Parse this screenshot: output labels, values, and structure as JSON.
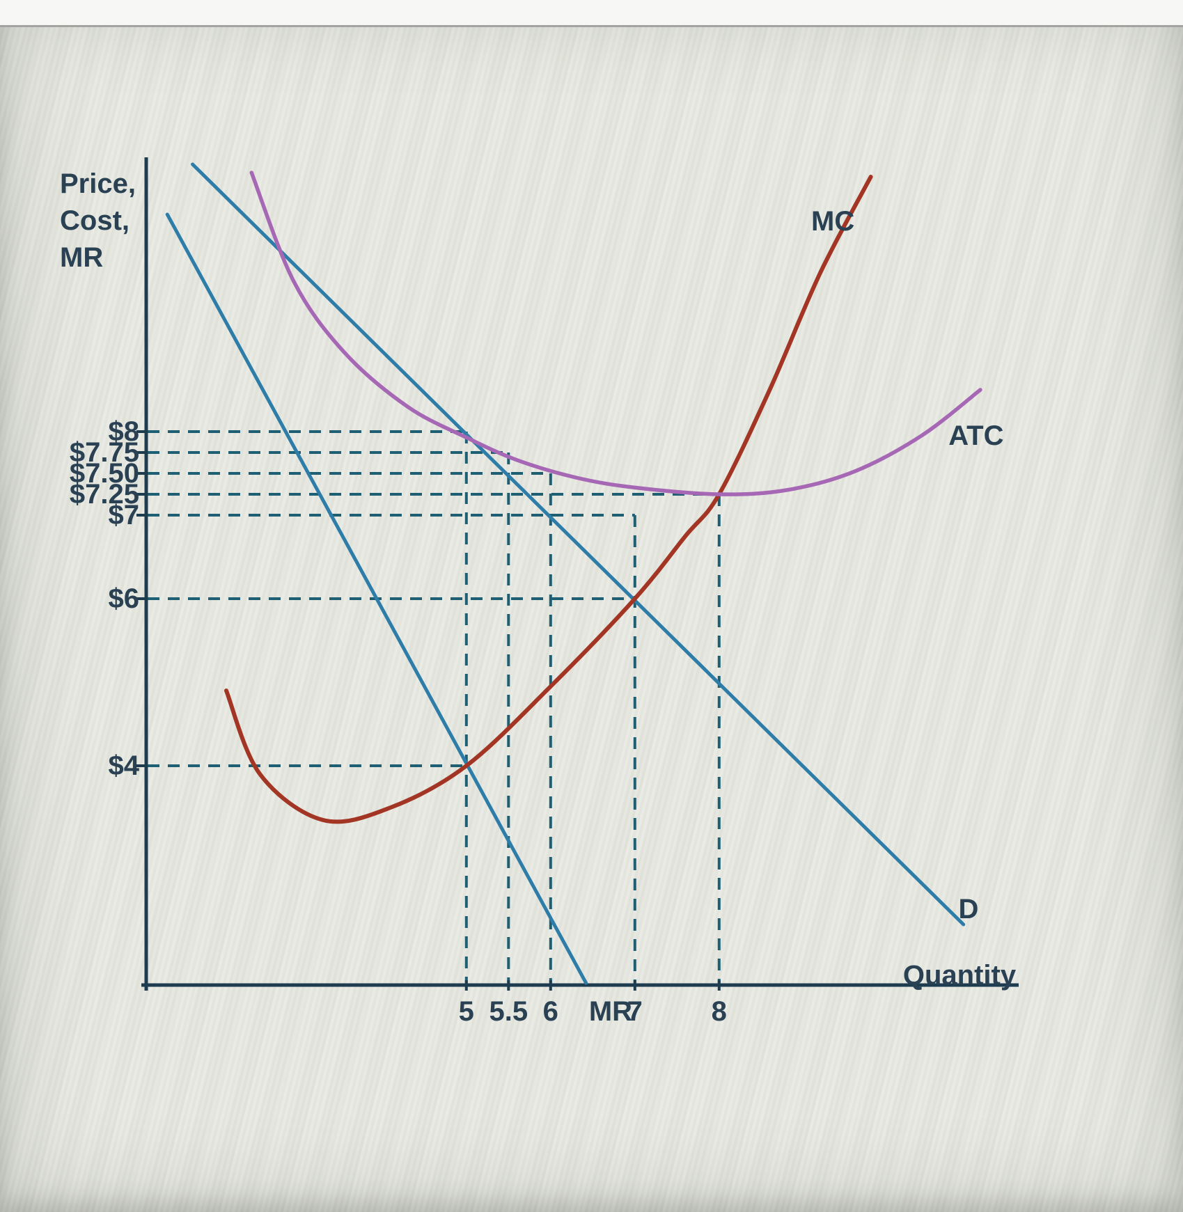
{
  "chart_data": {
    "type": "line",
    "title": "",
    "ylabel": "Price,\nCost,\nMR",
    "xlabel": "Quantity",
    "mr_label": "MR",
    "x_visible_range": [
      1.2,
      12.3
    ],
    "y_visible_range": [
      1.4,
      11.3
    ],
    "grid": "off",
    "legend": "curve labels drawn inline next to curves",
    "colors": {
      "axis": "#1d3c50",
      "dashed": "#1f5f73",
      "text": "#2a4154",
      "background": "#e7e9e1"
    },
    "x_ticks": [
      {
        "q": 5,
        "label": "5"
      },
      {
        "q": 5.5,
        "label": "5.5"
      },
      {
        "q": 6,
        "label": "6"
      },
      {
        "q": 7,
        "label": "7"
      },
      {
        "q": 8,
        "label": "8"
      }
    ],
    "price_lines": [
      {
        "label": "$8",
        "price": 8,
        "to_q": 5
      },
      {
        "label": "$7.75",
        "price": 7.75,
        "to_q": 5.5
      },
      {
        "label": "$7.50",
        "price": 7.5,
        "to_q": 6
      },
      {
        "label": "$7.25",
        "price": 7.25,
        "to_q": 8
      },
      {
        "label": "$7",
        "price": 7,
        "to_q": 7
      },
      {
        "label": "$6",
        "price": 6,
        "to_q": 7
      },
      {
        "label": "$4",
        "price": 4,
        "to_q": 5
      }
    ],
    "vertical_lines": [
      {
        "q": 5,
        "from_price": 8
      },
      {
        "q": 5.5,
        "from_price": 7.75
      },
      {
        "q": 6,
        "from_price": 7.5
      },
      {
        "q": 7,
        "from_price": 7
      },
      {
        "q": 8,
        "from_price": 7.25
      }
    ],
    "series": [
      {
        "name": "D",
        "label": "D",
        "color": "#2e7ca8",
        "width": 5,
        "points": [
          [
            1.75,
            11.2
          ],
          [
            10.9,
            2.1
          ]
        ],
        "label_anchor": [
          10.96,
          2.28
        ]
      },
      {
        "name": "MR",
        "label": "MR",
        "color": "#2e7ca8",
        "width": 5,
        "points": [
          [
            1.45,
            10.6
          ],
          [
            6.42,
            1.4
          ]
        ],
        "label_anchor": [
          6.62,
          1.1
        ]
      },
      {
        "name": "MC",
        "label": "MC",
        "color": "#a33524",
        "width": 6,
        "points": [
          [
            2.15,
            4.9
          ],
          [
            2.55,
            3.9
          ],
          [
            3.3,
            3.35
          ],
          [
            4.1,
            3.5
          ],
          [
            5,
            4
          ],
          [
            6,
            4.95
          ],
          [
            7,
            6
          ],
          [
            7.6,
            6.75
          ],
          [
            8,
            7.25
          ],
          [
            8.6,
            8.5
          ],
          [
            9.2,
            9.9
          ],
          [
            9.8,
            11.05
          ]
        ],
        "label_anchor": [
          9.35,
          10.52
        ]
      },
      {
        "name": "ATC",
        "label": "ATC",
        "color": "#a668b5",
        "width": 5.5,
        "points": [
          [
            2.45,
            11.1
          ],
          [
            2.95,
            9.8
          ],
          [
            3.55,
            8.95
          ],
          [
            4.3,
            8.3
          ],
          [
            5,
            7.93
          ],
          [
            5.6,
            7.66
          ],
          [
            6.3,
            7.45
          ],
          [
            7,
            7.33
          ],
          [
            8,
            7.25
          ],
          [
            8.8,
            7.3
          ],
          [
            9.6,
            7.52
          ],
          [
            10.4,
            7.95
          ],
          [
            11.1,
            8.5
          ]
        ],
        "label_anchor": [
          11.05,
          7.95
        ]
      }
    ],
    "intersections": [
      {
        "q": 5,
        "price": 4,
        "note": "MR crosses MC"
      },
      {
        "q": 5,
        "price": 8,
        "note": "price on D at Q=5"
      },
      {
        "q": 5.5,
        "price": 7.75,
        "note": "price on D at Q=5.5"
      },
      {
        "q": 6,
        "price": 7.5,
        "note": "price on D at Q=6"
      },
      {
        "q": 7,
        "price": 6,
        "note": "D crosses MC"
      },
      {
        "q": 8,
        "price": 7.25,
        "note": "MC crosses ATC at minimum ATC"
      }
    ]
  }
}
